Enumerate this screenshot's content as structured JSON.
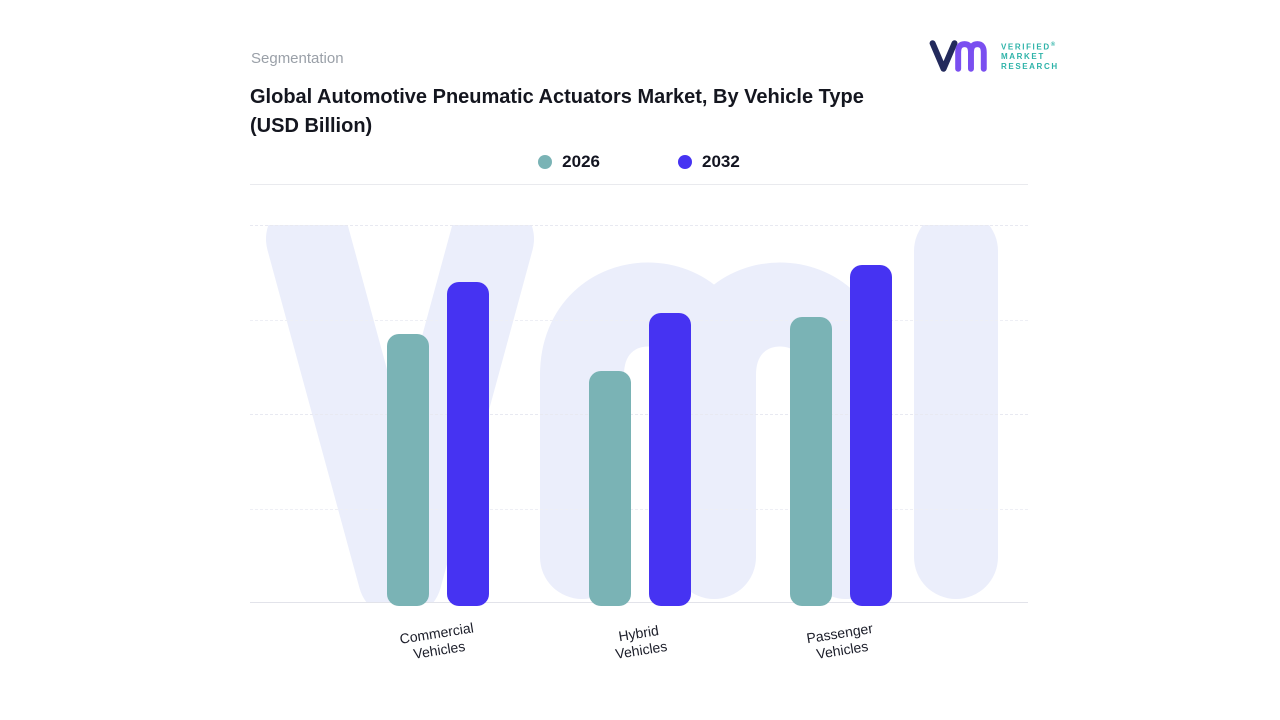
{
  "page": {
    "eyebrow": "Segmentation",
    "title_line1": "Global Automotive Pneumatic Actuators Market, By Vehicle Type",
    "title_line2": "(USD Billion)"
  },
  "brand": {
    "name_lines": [
      "VERIFIED",
      "MARKET",
      "RESEARCH"
    ],
    "registered_mark": "®",
    "text_color": "#2fb3a9",
    "mark_v_color": "#232a5c",
    "mark_m_color": "#7a4ff0"
  },
  "legend": {
    "items": [
      {
        "label": "2026",
        "color": "#7ab3b5"
      },
      {
        "label": "2032",
        "color": "#4633f2"
      }
    ]
  },
  "chart_data": {
    "type": "bar",
    "title": "Global Automotive Pneumatic Actuators Market, By Vehicle Type (USD Billion)",
    "categories": [
      "Commercial\nVehicles",
      "Hybrid\nVehicles",
      "Passenger\nVehicles"
    ],
    "series": [
      {
        "name": "2026",
        "color": "#7ab3b5",
        "values": [
          8.0,
          6.9,
          8.5
        ]
      },
      {
        "name": "2032",
        "color": "#4633f2",
        "values": [
          9.5,
          8.6,
          10.0
        ]
      }
    ],
    "xlabel": "",
    "ylabel": "USD Billion",
    "ylim": [
      0,
      11.1
    ],
    "grid": "horizontal-dashed",
    "legend_position": "top-center",
    "value_axis_labels_visible": false
  },
  "watermark": {
    "color": "#ebeefb"
  }
}
